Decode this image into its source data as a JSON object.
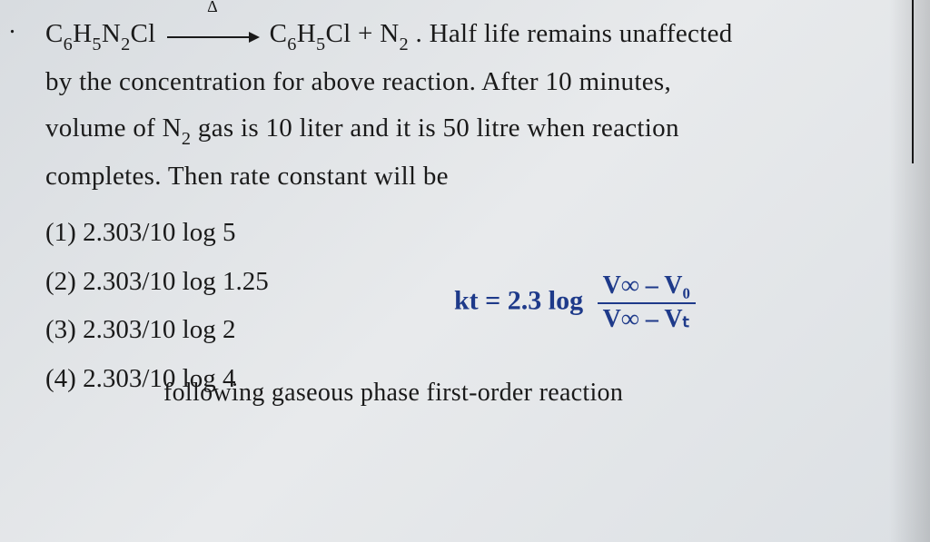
{
  "question": {
    "number": ".",
    "reactant": {
      "formula_parts": [
        "C",
        "6",
        "H",
        "5",
        "N",
        "2",
        "Cl"
      ]
    },
    "product1": {
      "formula_parts": [
        "C",
        "6",
        "H",
        "5",
        "Cl"
      ]
    },
    "product2": {
      "formula_parts": [
        "N",
        "2"
      ]
    },
    "arrow_label": "Δ",
    "line1_suffix": ". Half life remains unaffected",
    "line2": "by the concentration for above reaction. After 10 minutes,",
    "line3_prefix": "volume of ",
    "line3_mid": " gas is 10 liter and it is 50 litre when reaction",
    "line4": "completes. Then rate constant will be"
  },
  "options": [
    {
      "num": "(1)",
      "text": "2.303/10 log 5"
    },
    {
      "num": "(2)",
      "text": "2.303/10 log 1.25"
    },
    {
      "num": "(3)",
      "text": "2.303/10 log 2"
    },
    {
      "num": "(4)",
      "text": "2.303/10 log 4"
    }
  ],
  "handwritten": {
    "lhs": "kt = 2.3 log",
    "frac_num": "V∞ – V₀",
    "frac_den": "V∞ – Vₜ"
  },
  "bottom_partial": "following gaseous phase first-order reaction",
  "colors": {
    "text": "#1a1a1a",
    "handwriting": "#1e3a8a",
    "background_light": "#e8eaec",
    "background_dark": "#d8dce0"
  },
  "fontsize": {
    "body": 29,
    "handwritten": 30,
    "subscript_ratio": 0.7
  }
}
